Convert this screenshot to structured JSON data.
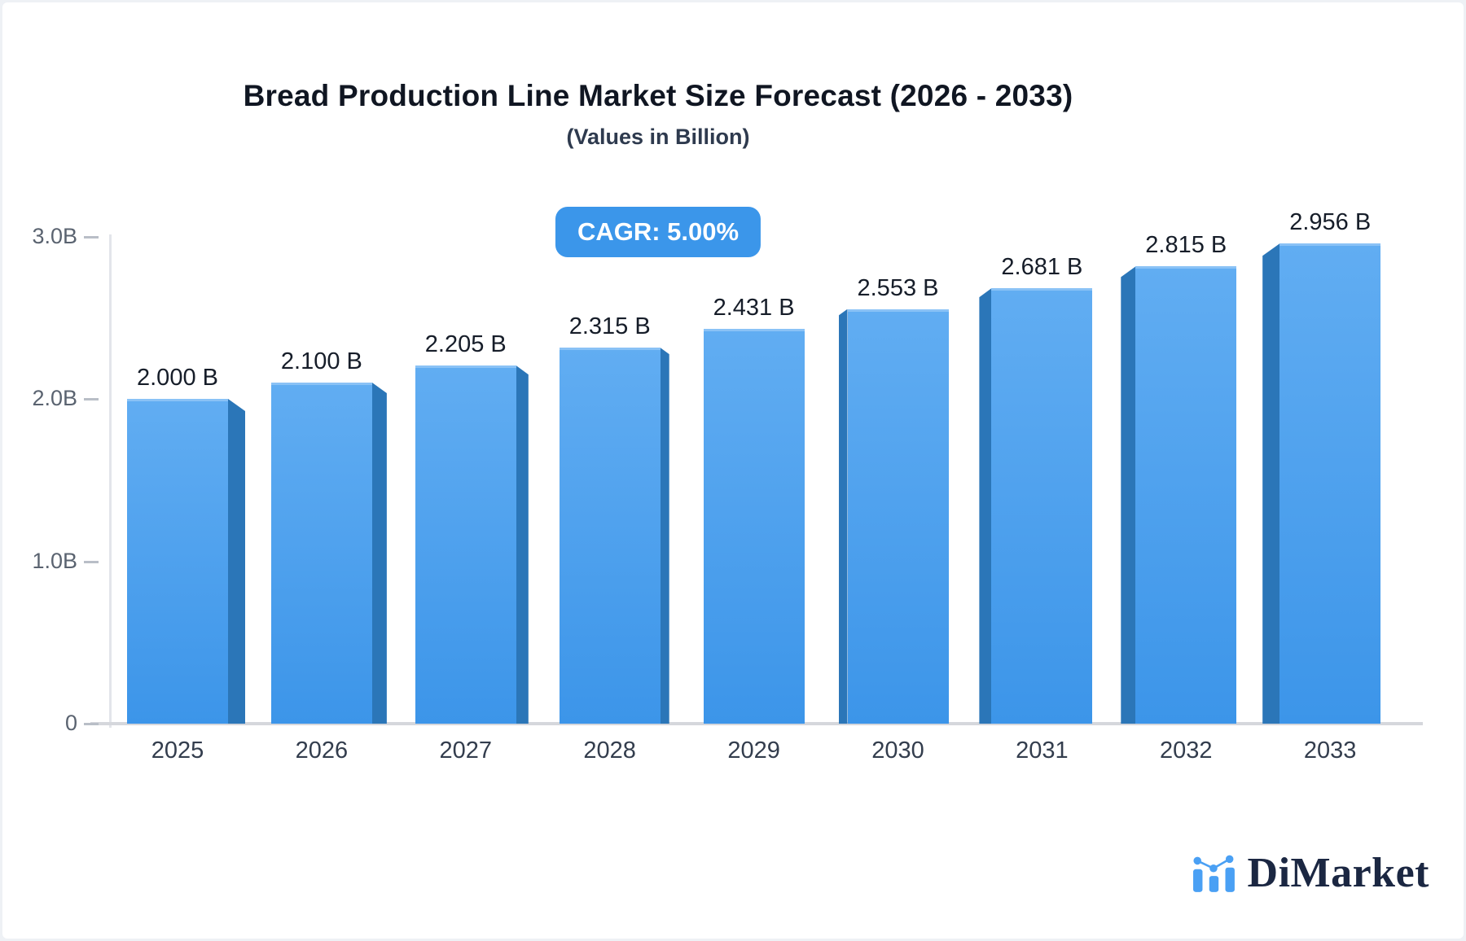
{
  "header": {
    "title": "Bread Production Line Market Size Forecast (2026 - 2033)",
    "subtitle": "(Values in Billion)"
  },
  "badge": {
    "label": "CAGR: 5.00%",
    "background": "#3b96ea",
    "text_color": "#ffffff"
  },
  "chart_data": {
    "type": "bar",
    "title": "Bread Production Line Market Size Forecast (2026 - 2033)",
    "subtitle": "(Values in Billion)",
    "cagr_percent": "5.00%",
    "categories": [
      "2025",
      "2026",
      "2027",
      "2028",
      "2029",
      "2030",
      "2031",
      "2032",
      "2033"
    ],
    "values": [
      2.0,
      2.1,
      2.205,
      2.315,
      2.431,
      2.553,
      2.681,
      2.815,
      2.956
    ],
    "bar_labels": [
      "2.000 B",
      "2.100 B",
      "2.205 B",
      "2.315 B",
      "2.431 B",
      "2.553 B",
      "2.681 B",
      "2.815 B",
      "2.956 B"
    ],
    "unit": "Billion",
    "y_ticks": [
      {
        "value": 0,
        "label": "0"
      },
      {
        "value": 1,
        "label": "1.0B"
      },
      {
        "value": 2,
        "label": "2.0B"
      },
      {
        "value": 3,
        "label": "3.0B"
      }
    ],
    "ylim": [
      0,
      3.1
    ],
    "grid": false,
    "legend": "none",
    "colors": {
      "bar_face_top": "#61adf2",
      "bar_face_bottom": "#3c95e9",
      "bar_side": "#2b76b8",
      "axis_line": "#e3e5ea",
      "baseline": "#d5d7dc"
    }
  },
  "logo": {
    "text": "DiMarket",
    "icon": "mini-bar-chart-icon",
    "icon_color": "#4aa0f4",
    "text_color": "#1b2742"
  }
}
